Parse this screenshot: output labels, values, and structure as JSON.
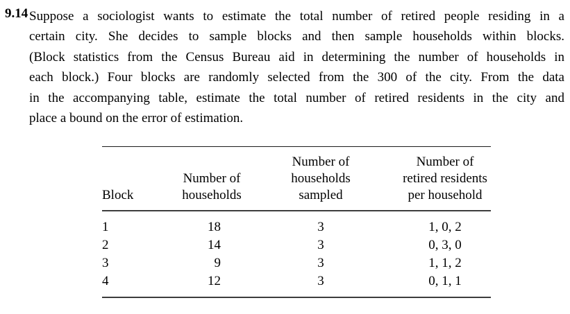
{
  "problem": {
    "number": "9.14",
    "lines": [
      "Suppose a sociologist wants to estimate the total number of retired people residing in a",
      "certain city. She decides to sample blocks and then sample households within blocks.",
      "(Block statistics from the Census Bureau aid in determining the number of households in",
      "each block.) Four blocks are randomly selected from the 300 of the city. From the data",
      "in the accompanying table, estimate the total number of retired residents in the city and",
      "place a bound on the error of estimation."
    ]
  },
  "table": {
    "columns": [
      {
        "header_lines": [
          "Block"
        ]
      },
      {
        "header_lines": [
          "Number of",
          "households"
        ]
      },
      {
        "header_lines": [
          "Number of",
          "households",
          "sampled"
        ]
      },
      {
        "header_lines": [
          "Number of",
          "retired residents",
          "per household"
        ]
      }
    ],
    "rows": [
      {
        "block": "1",
        "households": "18",
        "sampled": "3",
        "retired": "1, 0, 2"
      },
      {
        "block": "2",
        "households": "14",
        "sampled": "3",
        "retired": "0, 3, 0"
      },
      {
        "block": "3",
        "households": "9",
        "sampled": "3",
        "retired": "1, 1, 2"
      },
      {
        "block": "4",
        "households": "12",
        "sampled": "3",
        "retired": "0, 1, 1"
      }
    ]
  },
  "colors": {
    "text": "#000000",
    "background": "#ffffff",
    "rule_thin": "#1b1b1b",
    "rule_heavy": "#3c3c3c"
  }
}
